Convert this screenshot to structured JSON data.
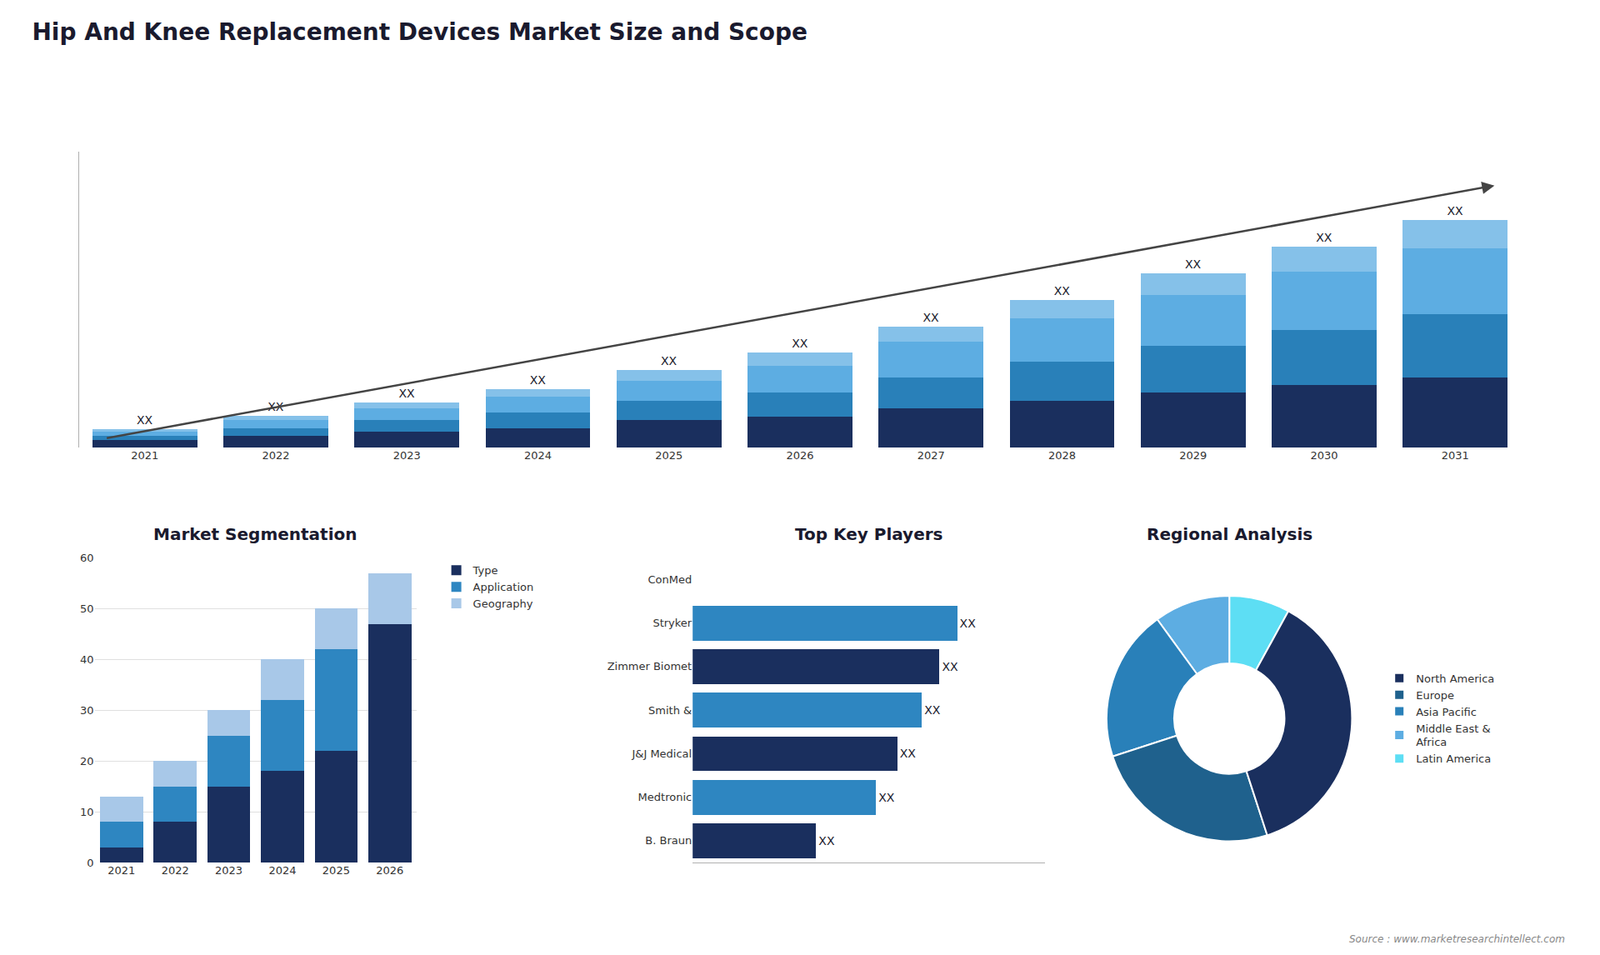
{
  "title": "Hip And Knee Replacement Devices Market Size and Scope",
  "annotations": [
    "Source : www.marketresearchintellect.com"
  ],
  "chart_data": [
    {
      "type": "bar",
      "stacked": true,
      "categories": [
        "2021",
        "2022",
        "2023",
        "2024",
        "2025",
        "2026",
        "2027",
        "2028",
        "2029",
        "2030",
        "2031"
      ],
      "series": [
        {
          "color": "#1a2f5e",
          "values": [
            2,
            3,
            4,
            5,
            7,
            8,
            10,
            12,
            14,
            16,
            18
          ]
        },
        {
          "color": "#2980b9",
          "values": [
            1,
            2,
            3,
            4,
            5,
            6,
            8,
            10,
            12,
            14,
            16
          ]
        },
        {
          "color": "#5dade2",
          "values": [
            1,
            2,
            3,
            4,
            5,
            7,
            9,
            11,
            13,
            15,
            17
          ]
        },
        {
          "color": "#85c1e9",
          "values": [
            0.8,
            1.2,
            1.6,
            2,
            2.8,
            3.2,
            4,
            4.8,
            5.6,
            6.4,
            7.2
          ],
          "value_labels": [
            "XX",
            "XX",
            "XX",
            "XX",
            "XX",
            "XX",
            "XX",
            "XX",
            "XX",
            "XX",
            "XX"
          ]
        }
      ],
      "data_labels": true,
      "ylim": [
        0,
        75.66
      ],
      "tick_labels": "x",
      "grid": false
    },
    {
      "type": "bar",
      "title": "Market Segmentation",
      "stacked": true,
      "categories": [
        "2021",
        "2022",
        "2023",
        "2024",
        "2025",
        "2026"
      ],
      "series": [
        {
          "name": "Type",
          "color": "#1a2f5e",
          "values": [
            3,
            8,
            15,
            18,
            22,
            47
          ]
        },
        {
          "name": "Application",
          "color": "#2e86c1",
          "values": [
            5,
            7,
            10,
            14,
            20,
            0
          ]
        },
        {
          "name": "Geography",
          "color": "#a8c8e8",
          "values": [
            5,
            5,
            5,
            8,
            8,
            10
          ]
        }
      ],
      "ylim": [
        0,
        60
      ],
      "yticks": [
        0,
        10,
        20,
        30,
        40,
        50,
        60
      ],
      "grid": true,
      "legend": "right"
    },
    {
      "type": "bar",
      "title": "Top Key Players",
      "orientation": "horizontal",
      "categories": [
        "ConMed",
        "Stryker",
        "Zimmer Biomet",
        "Smith &",
        "J&J Medical",
        "Medtronic",
        "B. Braun"
      ],
      "values": [
        0,
        75,
        70,
        65,
        58,
        52,
        35
      ],
      "value_labels": [
        null,
        "XX",
        "XX",
        "XX",
        "XX",
        "XX",
        "XX"
      ],
      "data_labels": true,
      "colors": [
        "#1a2f5e",
        "#2e86c1",
        "#1a2f5e",
        "#2e86c1",
        "#1a2f5e",
        "#2e86c1",
        "#1a2f5e"
      ],
      "xlim": [
        0,
        100
      ],
      "tick_labels": "y",
      "grid": false
    },
    {
      "type": "donut",
      "title": "Regional Analysis",
      "categories": [
        "Latin America",
        "Middle East &\nAfrica",
        "Asia Pacific",
        "Europe",
        "North America"
      ],
      "values": [
        8,
        10,
        20,
        25,
        37
      ],
      "colors": [
        "#5ddef4",
        "#5dade2",
        "#2980b9",
        "#1f618d",
        "#1a2f5e"
      ],
      "legend": "right"
    }
  ]
}
